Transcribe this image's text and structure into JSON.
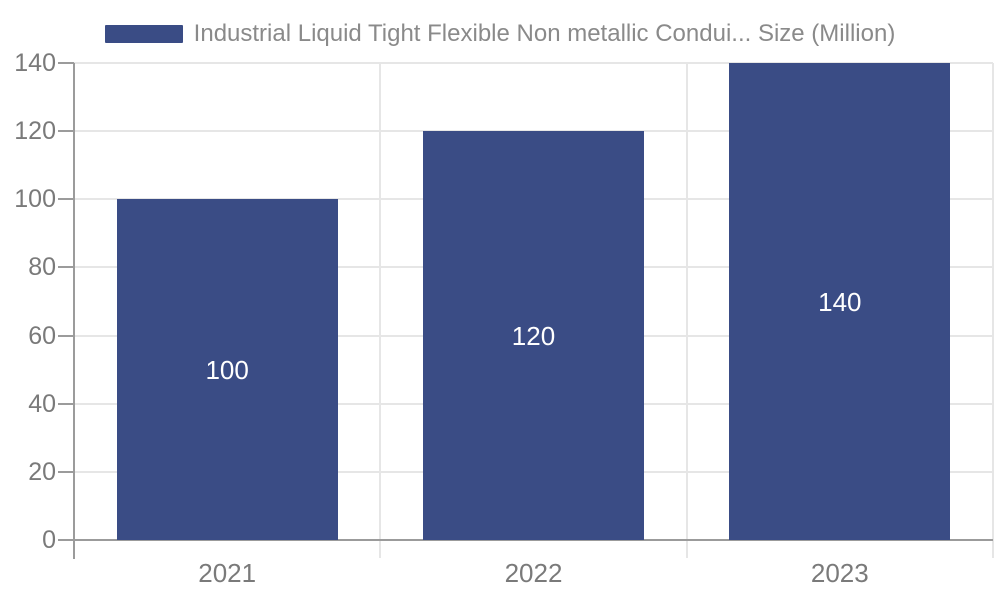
{
  "legend": {
    "label": "Industrial Liquid Tight Flexible Non metallic Condui... Size (Million)"
  },
  "chart_data": {
    "type": "bar",
    "title": "",
    "categories": [
      "2021",
      "2022",
      "2023"
    ],
    "series": [
      {
        "name": "Industrial Liquid Tight Flexible Non metallic Condui... Size (Million)",
        "values": [
          100,
          120,
          140
        ]
      }
    ],
    "bar_labels": [
      "100",
      "120",
      "140"
    ],
    "xlabel": "",
    "ylabel": "",
    "ylim": [
      0,
      140
    ],
    "yticks": [
      0,
      20,
      40,
      60,
      80,
      100,
      120,
      140
    ],
    "grid": true,
    "legend_position": "top-center",
    "colors": {
      "bar": "#3A4C85",
      "bar_label_text": "#FFFFFF",
      "axis_text": "#7A7A7A",
      "legend_text": "#8A8A8A",
      "gridline": "#E6E6E6",
      "axis_line": "#9B9B9B",
      "background": "#FFFFFF"
    }
  }
}
